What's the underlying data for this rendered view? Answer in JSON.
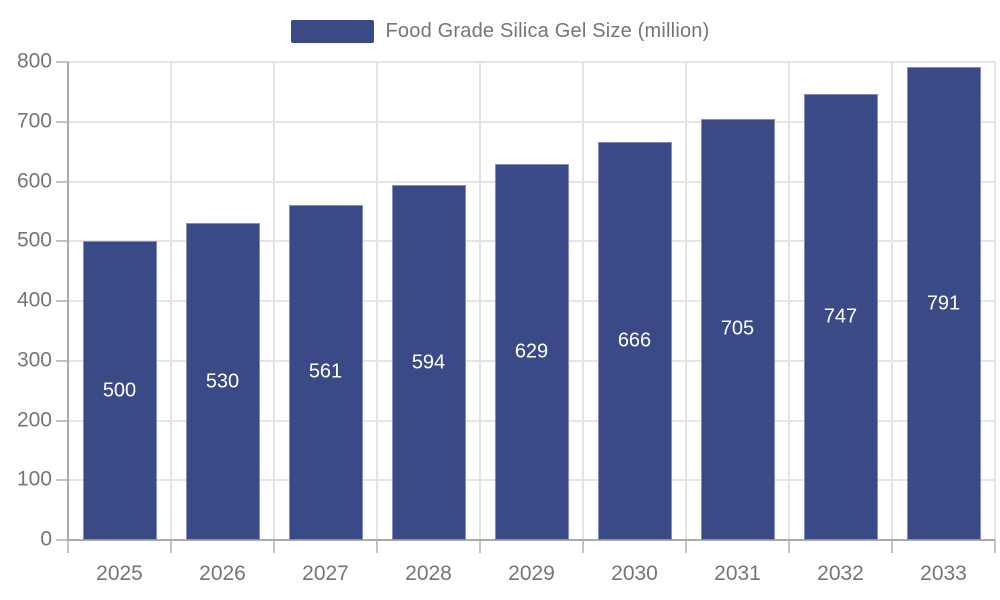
{
  "chart_data": {
    "type": "bar",
    "title": "Food Grade Silica Gel Size (million)",
    "legend": {
      "position": "top",
      "label": "Food Grade Silica Gel Size (million)"
    },
    "categories": [
      "2025",
      "2026",
      "2027",
      "2028",
      "2029",
      "2030",
      "2031",
      "2032",
      "2033"
    ],
    "values": [
      500,
      530,
      561,
      594,
      629,
      666,
      705,
      747,
      791
    ],
    "bar_value_labels": [
      "500",
      "530",
      "561",
      "594",
      "629",
      "666",
      "705",
      "747",
      "791"
    ],
    "xlabel": "",
    "ylabel": "",
    "ylim": [
      0,
      800
    ],
    "yticks": [
      0,
      100,
      200,
      300,
      400,
      500,
      600,
      700,
      800
    ],
    "grid": true,
    "colors": {
      "bar": "#3A4A87",
      "bar_border": "#848DBC",
      "bar_value_text": "#FFFFFF",
      "grid": "#E4E4E4",
      "axis": "#ABABAB",
      "tick": "#C2C2C2",
      "tick_label": "#757575",
      "legend_text": "#757575",
      "background": "#FFFFFF"
    }
  }
}
